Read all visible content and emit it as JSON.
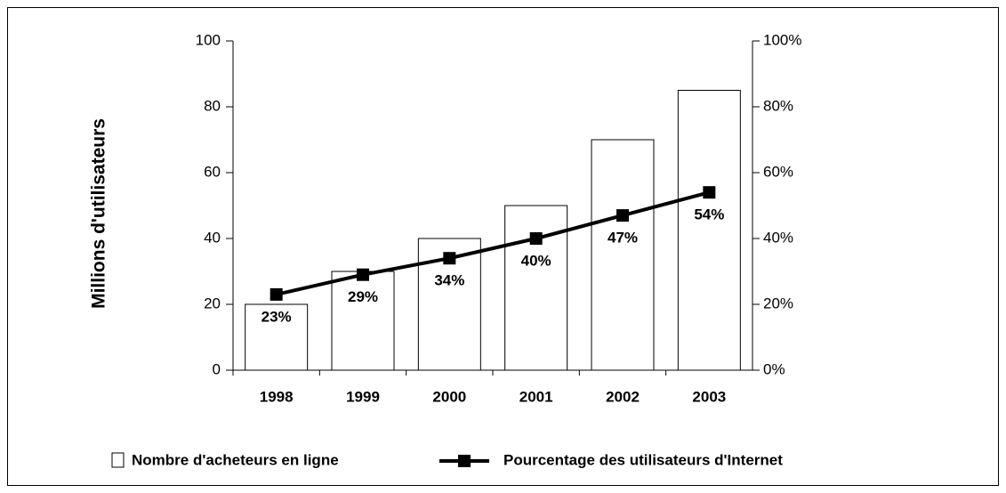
{
  "chart_data": {
    "type": "bar_line",
    "ylabel": "Millions d'utilisateurs",
    "categories": [
      "1998",
      "1999",
      "2000",
      "2001",
      "2002",
      "2003"
    ],
    "series": [
      {
        "name": "Nombre d'acheteurs en ligne",
        "type": "bar",
        "color": "#ffffff",
        "values": [
          20,
          30,
          40,
          50,
          70,
          85
        ]
      },
      {
        "name": "Pourcentage des utilisateurs d'Internet",
        "type": "line",
        "axis": "y2",
        "color": "#000000",
        "values": [
          23,
          29,
          34,
          40,
          47,
          54
        ],
        "value_labels": [
          "23%",
          "29%",
          "34%",
          "40%",
          "47%",
          "54%"
        ]
      }
    ],
    "ylim": [
      0,
      100
    ],
    "yticks": [
      0,
      20,
      40,
      60,
      80,
      100
    ],
    "y2lim": [
      0,
      100
    ],
    "y2ticks": [
      {
        "value": 0,
        "label": "0%"
      },
      {
        "value": 20,
        "label": "20%"
      },
      {
        "value": 40,
        "label": "40%"
      },
      {
        "value": 60,
        "label": "60%"
      },
      {
        "value": 80,
        "label": "80%"
      },
      {
        "value": 100,
        "label": "100%"
      }
    ],
    "legend": "bottom"
  }
}
